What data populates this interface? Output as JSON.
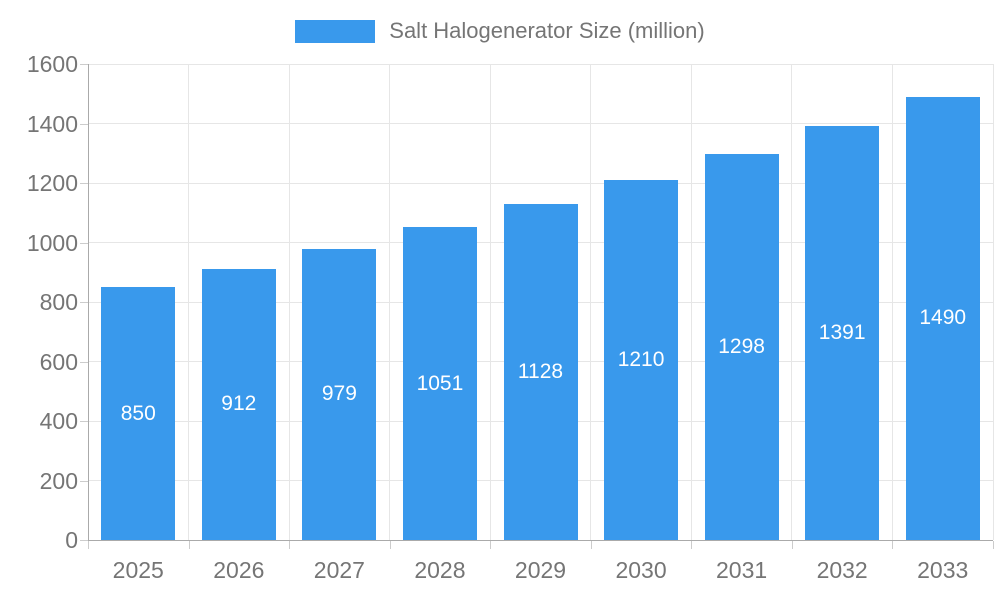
{
  "chart_data": {
    "type": "bar",
    "title": "Salt Halogenerator Size (million)",
    "legend": [
      "Salt Halogenerator Size (million)"
    ],
    "legend_position": "top-center",
    "categories": [
      "2025",
      "2026",
      "2027",
      "2028",
      "2029",
      "2030",
      "2031",
      "2032",
      "2033"
    ],
    "values": [
      850,
      912,
      979,
      1051,
      1128,
      1210,
      1298,
      1391,
      1490
    ],
    "xlabel": "",
    "ylabel": "",
    "ylim": [
      0,
      1600
    ],
    "yticks": [
      0,
      200,
      400,
      600,
      800,
      1000,
      1200,
      1400,
      1600
    ],
    "grid": true,
    "value_labels": "inside-center"
  },
  "colors": {
    "bar": "#3999EC",
    "value_label": "#FFFFFF",
    "axis_text": "#757575",
    "legend_text": "#757575",
    "grid_line": "#E6E6E6",
    "axis_line": "#AAAAAA",
    "tick_line": "#CCCCCC",
    "background": "#FFFFFF"
  }
}
